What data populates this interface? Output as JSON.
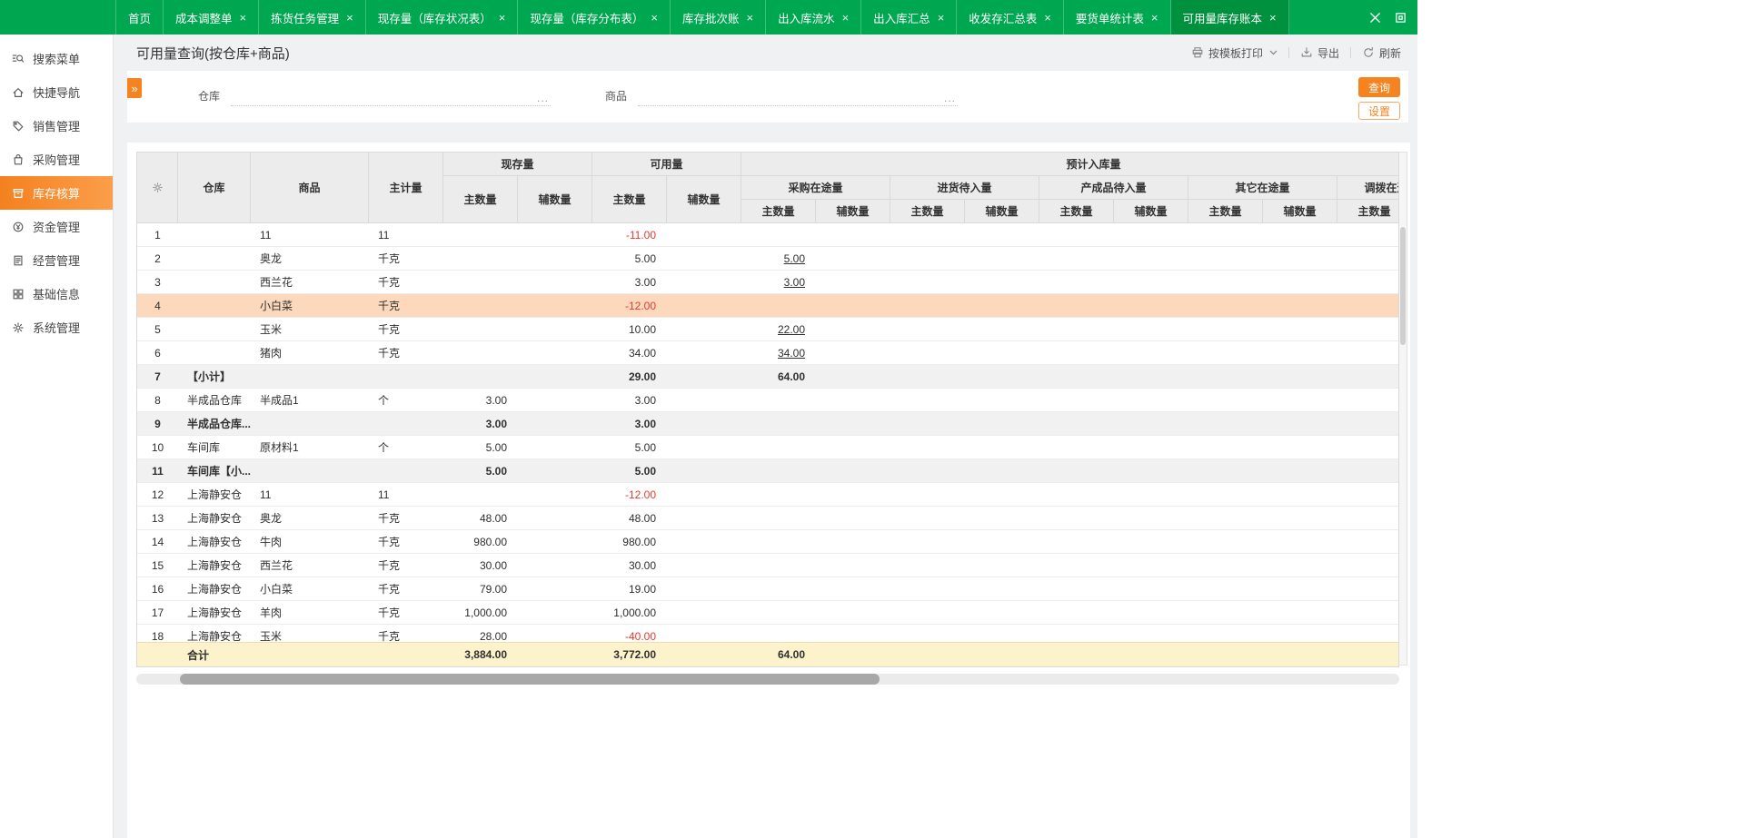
{
  "colors": {
    "topbar_green": "#00a751",
    "active_tab_green": "#00913f",
    "accent_orange": "#f5831f",
    "selected_row": "#fcd9bc",
    "subtotal_row": "#f1f1f1",
    "total_row": "#fcf3cd",
    "negative_number": "#e8392e"
  },
  "topbar": {
    "close_glyph": "×",
    "window_icons": [
      "close-window-icon",
      "maximize-icon"
    ],
    "tabs": [
      {
        "id": "home",
        "label": "首页",
        "closable": false,
        "active": false
      },
      {
        "id": "cost-adjust",
        "label": "成本调整单",
        "closable": true,
        "active": false
      },
      {
        "id": "picking-task",
        "label": "拣货任务管理",
        "closable": true,
        "active": false
      },
      {
        "id": "stock-status",
        "label": "现存量（库存状况表）",
        "closable": true,
        "active": false
      },
      {
        "id": "stock-distribution",
        "label": "现存量（库存分布表）",
        "closable": true,
        "active": false
      },
      {
        "id": "stock-batch",
        "label": "库存批次账",
        "closable": true,
        "active": false
      },
      {
        "id": "inout-flow",
        "label": "出入库流水",
        "closable": true,
        "active": false
      },
      {
        "id": "inout-summary",
        "label": "出入库汇总",
        "closable": true,
        "active": false
      },
      {
        "id": "receipt-dispatch-summary",
        "label": "收发存汇总表",
        "closable": true,
        "active": false
      },
      {
        "id": "demand-order-stats",
        "label": "要货单统计表",
        "closable": true,
        "active": false
      },
      {
        "id": "available-stock-ledger",
        "label": "可用量库存账本",
        "closable": true,
        "active": true
      }
    ]
  },
  "sidebar": {
    "items": [
      {
        "id": "search-menu",
        "icon": "search-icon",
        "label": "搜索菜单",
        "active": false
      },
      {
        "id": "quick-nav",
        "icon": "home-icon",
        "label": "快捷导航",
        "active": false
      },
      {
        "id": "sales",
        "icon": "tag-icon",
        "label": "销售管理",
        "active": false
      },
      {
        "id": "purchase",
        "icon": "bag-icon",
        "label": "采购管理",
        "active": false
      },
      {
        "id": "inventory",
        "icon": "archive-box-icon",
        "label": "库存核算",
        "active": true
      },
      {
        "id": "funds",
        "icon": "coin-icon",
        "label": "资金管理",
        "active": false
      },
      {
        "id": "operations",
        "icon": "document-icon",
        "label": "经营管理",
        "active": false
      },
      {
        "id": "base-info",
        "icon": "grid-icon",
        "label": "基础信息",
        "active": false
      },
      {
        "id": "system",
        "icon": "gear-icon",
        "label": "系统管理",
        "active": false
      }
    ]
  },
  "page": {
    "title": "可用量查询(按仓库+商品)",
    "toolbar": {
      "print": "按模板打印",
      "export": "导出",
      "refresh": "刷新"
    }
  },
  "filters": {
    "expand_glyph": "»",
    "warehouse_label": "仓库",
    "goods_label": "商品",
    "picker_glyph": "...",
    "query_button": "查询",
    "settings_button": "设置"
  },
  "table": {
    "header": {
      "warehouse": "仓库",
      "goods": "商品",
      "unit": "主计量",
      "stock": "现存量",
      "available": "可用量",
      "planned_in": "预计入库量",
      "purchase_transit": "采购在途量",
      "incoming_pending": "进货待入量",
      "finished_pending": "产成品待入量",
      "other_transit": "其它在途量",
      "transfer_transit": "调拨在途量",
      "main_qty": "主数量",
      "aux_qty": "辅数量"
    },
    "rows": [
      {
        "num": "1",
        "warehouse": "",
        "goods": "11",
        "unit": "11",
        "stock_main": "",
        "avail_main": "-11.00",
        "purchase_main": "",
        "purchase_link": false,
        "style": "normal"
      },
      {
        "num": "2",
        "warehouse": "",
        "goods": "奥龙",
        "unit": "千克",
        "stock_main": "",
        "avail_main": "5.00",
        "purchase_main": "5.00",
        "purchase_link": true,
        "style": "normal"
      },
      {
        "num": "3",
        "warehouse": "",
        "goods": "西兰花",
        "unit": "千克",
        "stock_main": "",
        "avail_main": "3.00",
        "purchase_main": "3.00",
        "purchase_link": true,
        "style": "normal"
      },
      {
        "num": "4",
        "warehouse": "",
        "goods": "小白菜",
        "unit": "千克",
        "stock_main": "",
        "avail_main": "-12.00",
        "purchase_main": "",
        "purchase_link": false,
        "style": "selected"
      },
      {
        "num": "5",
        "warehouse": "",
        "goods": "玉米",
        "unit": "千克",
        "stock_main": "",
        "avail_main": "10.00",
        "purchase_main": "22.00",
        "purchase_link": true,
        "style": "normal"
      },
      {
        "num": "6",
        "warehouse": "",
        "goods": "猪肉",
        "unit": "千克",
        "stock_main": "",
        "avail_main": "34.00",
        "purchase_main": "34.00",
        "purchase_link": true,
        "style": "normal"
      },
      {
        "num": "7",
        "warehouse": "【小计】",
        "goods": "",
        "unit": "",
        "stock_main": "",
        "avail_main": "29.00",
        "purchase_main": "64.00",
        "purchase_link": false,
        "style": "subtotal"
      },
      {
        "num": "8",
        "warehouse": "半成品仓库",
        "goods": "半成品1",
        "unit": "个",
        "stock_main": "3.00",
        "avail_main": "3.00",
        "purchase_main": "",
        "purchase_link": false,
        "style": "normal"
      },
      {
        "num": "9",
        "warehouse": "半成品仓库...",
        "goods": "",
        "unit": "",
        "stock_main": "3.00",
        "avail_main": "3.00",
        "purchase_main": "",
        "purchase_link": false,
        "style": "subtotal"
      },
      {
        "num": "10",
        "warehouse": "车间库",
        "goods": "原材料1",
        "unit": "个",
        "stock_main": "5.00",
        "avail_main": "5.00",
        "purchase_main": "",
        "purchase_link": false,
        "style": "normal"
      },
      {
        "num": "11",
        "warehouse": "车间库【小...",
        "goods": "",
        "unit": "",
        "stock_main": "5.00",
        "avail_main": "5.00",
        "purchase_main": "",
        "purchase_link": false,
        "style": "subtotal"
      },
      {
        "num": "12",
        "warehouse": "上海静安仓",
        "goods": "11",
        "unit": "11",
        "stock_main": "",
        "avail_main": "-12.00",
        "purchase_main": "",
        "purchase_link": false,
        "style": "normal"
      },
      {
        "num": "13",
        "warehouse": "上海静安仓",
        "goods": "奥龙",
        "unit": "千克",
        "stock_main": "48.00",
        "avail_main": "48.00",
        "purchase_main": "",
        "purchase_link": false,
        "style": "normal"
      },
      {
        "num": "14",
        "warehouse": "上海静安仓",
        "goods": "牛肉",
        "unit": "千克",
        "stock_main": "980.00",
        "avail_main": "980.00",
        "purchase_main": "",
        "purchase_link": false,
        "style": "normal"
      },
      {
        "num": "15",
        "warehouse": "上海静安仓",
        "goods": "西兰花",
        "unit": "千克",
        "stock_main": "30.00",
        "avail_main": "30.00",
        "purchase_main": "",
        "purchase_link": false,
        "style": "normal"
      },
      {
        "num": "16",
        "warehouse": "上海静安仓",
        "goods": "小白菜",
        "unit": "千克",
        "stock_main": "79.00",
        "avail_main": "19.00",
        "purchase_main": "",
        "purchase_link": false,
        "style": "normal"
      },
      {
        "num": "17",
        "warehouse": "上海静安仓",
        "goods": "羊肉",
        "unit": "千克",
        "stock_main": "1,000.00",
        "avail_main": "1,000.00",
        "purchase_main": "",
        "purchase_link": false,
        "style": "normal"
      },
      {
        "num": "18",
        "warehouse": "上海静安仓",
        "goods": "玉米",
        "unit": "千克",
        "stock_main": "28.00",
        "avail_main": "-40.00",
        "purchase_main": "",
        "purchase_link": false,
        "style": "normal"
      }
    ],
    "footer": {
      "label": "合计",
      "stock_main": "3,884.00",
      "available_main": "3,772.00",
      "purchase_main": "64.00"
    }
  }
}
